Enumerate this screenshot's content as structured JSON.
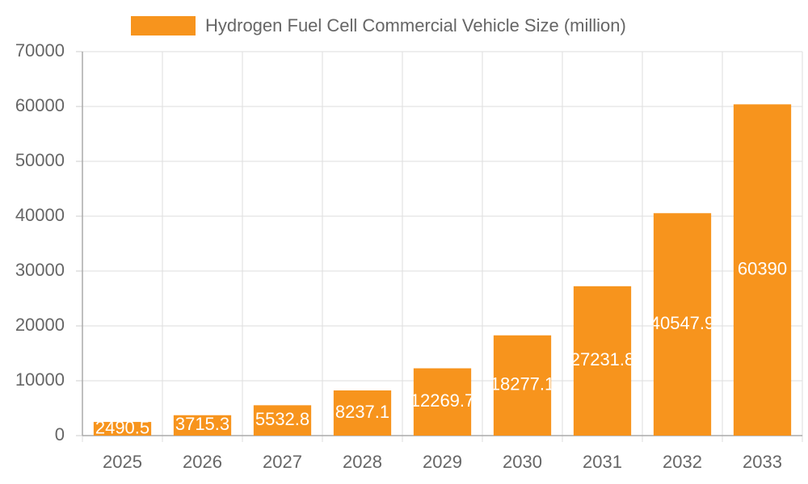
{
  "chart_data": {
    "type": "bar",
    "series": [
      {
        "name": "Hydrogen Fuel Cell Commercial Vehicle Size (million)",
        "color": "#f7941d",
        "values": [
          2490.5,
          3715.3,
          5532.8,
          8237.1,
          12269.7,
          18277.1,
          27231.8,
          40547.9,
          60390
        ]
      }
    ],
    "categories": [
      "2025",
      "2026",
      "2027",
      "2028",
      "2029",
      "2030",
      "2031",
      "2032",
      "2033"
    ],
    "ylim": [
      0,
      70000
    ],
    "yticks": [
      0,
      10000,
      20000,
      30000,
      40000,
      50000,
      60000,
      70000
    ],
    "grid": true,
    "legend": "top"
  }
}
